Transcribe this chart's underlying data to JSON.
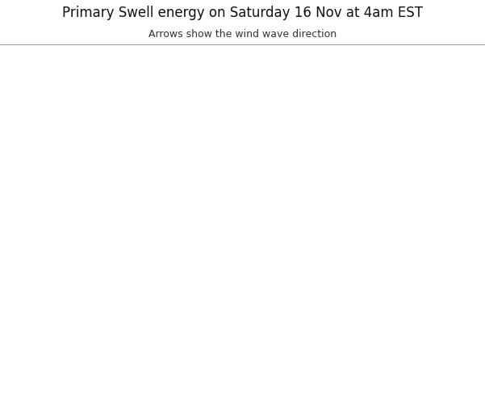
{
  "title": "Primary Swell energy on Saturday 16 Nov at 4am EST",
  "subtitle": "Arrows show the wind wave direction",
  "title_fontsize": 12,
  "subtitle_fontsize": 9,
  "bg_color": "#ffffff",
  "header_bg": "#f0f0f0",
  "ocean_color": "#000000",
  "land_color_light": "#b0b0b0",
  "land_color_dark": "#787878",
  "border_color": "#555555",
  "pacific_swell_colors": [
    "#0000aa",
    "#0022cc",
    "#0055ee",
    "#0088ff",
    "#00bbff",
    "#00eeff",
    "#aaffff"
  ],
  "atlantic_swell_colors": [
    "#0000aa",
    "#0022cc",
    "#0055ee",
    "#0088ff",
    "#00bbff",
    "#00eeff",
    "#aaffff"
  ],
  "arrow_color": "#00ffee",
  "header_line_color": "#999999"
}
